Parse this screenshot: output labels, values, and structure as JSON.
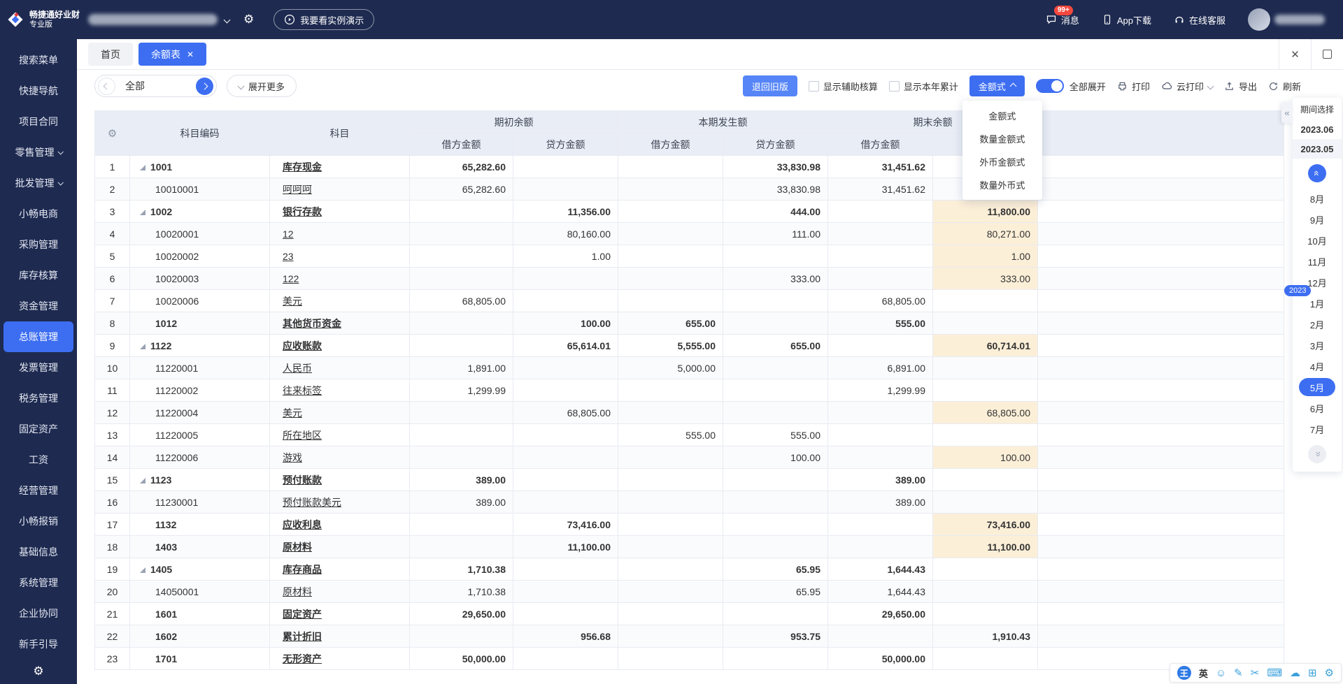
{
  "brand": {
    "name": "畅捷通好业财",
    "edition": "专业版"
  },
  "topbar": {
    "demo_link": "我要看实例演示",
    "messages": "消息",
    "messages_badge": "99+",
    "app_download": "App下载",
    "online_service": "在线客服"
  },
  "tabs": {
    "home": "首页",
    "active": "余额表"
  },
  "toolbar": {
    "filter_value": "全部",
    "expand_more": "展开更多",
    "back_old": "退回旧版",
    "show_aux": "显示辅助核算",
    "show_ytd": "显示本年累计",
    "format_btn": "金额式",
    "expand_all": "全部展开",
    "print": "打印",
    "cloud_print": "云打印",
    "export": "导出",
    "refresh": "刷新"
  },
  "format_menu": [
    "金额式",
    "数量金额式",
    "外币金额式",
    "数量外币式"
  ],
  "sidebar": {
    "items": [
      {
        "key": "search-menu",
        "label": "搜索菜单"
      },
      {
        "key": "quick-nav",
        "label": "快捷导航"
      },
      {
        "key": "project-contract",
        "label": "项目合同"
      },
      {
        "key": "retail-mgmt",
        "label": "零售管理",
        "arrow": true
      },
      {
        "key": "wholesale-mgmt",
        "label": "批发管理",
        "arrow": true
      },
      {
        "key": "xiaochang-ecom",
        "label": "小畅电商"
      },
      {
        "key": "purchase-mgmt",
        "label": "采购管理"
      },
      {
        "key": "inventory-accounting",
        "label": "库存核算"
      },
      {
        "key": "funds-mgmt",
        "label": "资金管理"
      },
      {
        "key": "general-ledger",
        "label": "总账管理",
        "active": true
      },
      {
        "key": "invoice-mgmt",
        "label": "发票管理"
      },
      {
        "key": "tax-mgmt",
        "label": "税务管理"
      },
      {
        "key": "fixed-assets",
        "label": "固定资产"
      },
      {
        "key": "payroll",
        "label": "工资"
      },
      {
        "key": "operations-mgmt",
        "label": "经营管理"
      },
      {
        "key": "xiaochang-expense",
        "label": "小畅报销"
      },
      {
        "key": "basic-info",
        "label": "基础信息"
      },
      {
        "key": "system-mgmt",
        "label": "系统管理"
      },
      {
        "key": "enterprise-collab",
        "label": "企业协同"
      },
      {
        "key": "beginner-guide",
        "label": "新手引导"
      }
    ]
  },
  "table": {
    "header": {
      "code": "科目编码",
      "subject": "科目",
      "groups": [
        "期初余额",
        "本期发生额",
        "期末余额"
      ],
      "debit": "借方金额",
      "credit": "贷方金额"
    },
    "rows": [
      {
        "seq": 1,
        "code": "1001",
        "name": "库存现金",
        "expand": true,
        "bold": true,
        "cells": [
          "65,282.60",
          "",
          "",
          "33,830.98",
          "31,451.62",
          ""
        ],
        "hl": []
      },
      {
        "seq": 2,
        "code": "10010001",
        "name": "呵呵呵",
        "expand": false,
        "bold": false,
        "cells": [
          "65,282.60",
          "",
          "",
          "33,830.98",
          "31,451.62",
          ""
        ],
        "hl": []
      },
      {
        "seq": 3,
        "code": "1002",
        "name": "银行存款",
        "expand": true,
        "bold": true,
        "cells": [
          "",
          "11,356.00",
          "",
          "444.00",
          "",
          "11,800.00"
        ],
        "hl": [
          5
        ]
      },
      {
        "seq": 4,
        "code": "10020001",
        "name": "12",
        "expand": false,
        "bold": false,
        "cells": [
          "",
          "80,160.00",
          "",
          "111.00",
          "",
          "80,271.00"
        ],
        "hl": [
          5
        ]
      },
      {
        "seq": 5,
        "code": "10020002",
        "name": "23",
        "expand": false,
        "bold": false,
        "cells": [
          "",
          "1.00",
          "",
          "",
          "",
          "1.00"
        ],
        "hl": [
          5
        ]
      },
      {
        "seq": 6,
        "code": "10020003",
        "name": "122",
        "expand": false,
        "bold": false,
        "cells": [
          "",
          "",
          "",
          "333.00",
          "",
          "333.00"
        ],
        "hl": [
          5
        ]
      },
      {
        "seq": 7,
        "code": "10020006",
        "name": "美元",
        "expand": false,
        "bold": false,
        "cells": [
          "68,805.00",
          "",
          "",
          "",
          "68,805.00",
          ""
        ],
        "hl": []
      },
      {
        "seq": 8,
        "code": "1012",
        "name": "其他货币资金",
        "expand": false,
        "bold": true,
        "cells": [
          "",
          "100.00",
          "655.00",
          "",
          "555.00",
          ""
        ],
        "hl": []
      },
      {
        "seq": 9,
        "code": "1122",
        "name": "应收账款",
        "expand": true,
        "bold": true,
        "cells": [
          "",
          "65,614.01",
          "5,555.00",
          "655.00",
          "",
          "60,714.01"
        ],
        "hl": [
          5
        ]
      },
      {
        "seq": 10,
        "code": "11220001",
        "name": "人民币",
        "expand": false,
        "bold": false,
        "cells": [
          "1,891.00",
          "",
          "5,000.00",
          "",
          "6,891.00",
          ""
        ],
        "hl": []
      },
      {
        "seq": 11,
        "code": "11220002",
        "name": "往来标签",
        "expand": false,
        "bold": false,
        "cells": [
          "1,299.99",
          "",
          "",
          "",
          "1,299.99",
          ""
        ],
        "hl": []
      },
      {
        "seq": 12,
        "code": "11220004",
        "name": "美元",
        "expand": false,
        "bold": false,
        "cells": [
          "",
          "68,805.00",
          "",
          "",
          "",
          "68,805.00"
        ],
        "hl": [
          5
        ]
      },
      {
        "seq": 13,
        "code": "11220005",
        "name": "所在地区",
        "expand": false,
        "bold": false,
        "cells": [
          "",
          "",
          "555.00",
          "555.00",
          "",
          ""
        ],
        "hl": []
      },
      {
        "seq": 14,
        "code": "11220006",
        "name": "游戏",
        "expand": false,
        "bold": false,
        "cells": [
          "",
          "",
          "",
          "100.00",
          "",
          "100.00"
        ],
        "hl": [
          5
        ]
      },
      {
        "seq": 15,
        "code": "1123",
        "name": "预付账款",
        "expand": true,
        "bold": true,
        "cells": [
          "389.00",
          "",
          "",
          "",
          "389.00",
          ""
        ],
        "hl": []
      },
      {
        "seq": 16,
        "code": "11230001",
        "name": "预付账款美元",
        "expand": false,
        "bold": false,
        "cells": [
          "389.00",
          "",
          "",
          "",
          "389.00",
          ""
        ],
        "hl": []
      },
      {
        "seq": 17,
        "code": "1132",
        "name": "应收利息",
        "expand": false,
        "bold": true,
        "cells": [
          "",
          "73,416.00",
          "",
          "",
          "",
          "73,416.00"
        ],
        "hl": [
          5
        ]
      },
      {
        "seq": 18,
        "code": "1403",
        "name": "原材料",
        "expand": false,
        "bold": true,
        "cells": [
          "",
          "11,100.00",
          "",
          "",
          "",
          "11,100.00"
        ],
        "hl": [
          5
        ]
      },
      {
        "seq": 19,
        "code": "1405",
        "name": "库存商品",
        "expand": true,
        "bold": true,
        "cells": [
          "1,710.38",
          "",
          "",
          "65.95",
          "1,644.43",
          ""
        ],
        "hl": []
      },
      {
        "seq": 20,
        "code": "14050001",
        "name": "原材料",
        "expand": false,
        "bold": false,
        "cells": [
          "1,710.38",
          "",
          "",
          "65.95",
          "1,644.43",
          ""
        ],
        "hl": []
      },
      {
        "seq": 21,
        "code": "1601",
        "name": "固定资产",
        "expand": false,
        "bold": true,
        "cells": [
          "29,650.00",
          "",
          "",
          "",
          "29,650.00",
          ""
        ],
        "hl": []
      },
      {
        "seq": 22,
        "code": "1602",
        "name": "累计折旧",
        "expand": false,
        "bold": true,
        "cells": [
          "",
          "956.68",
          "",
          "953.75",
          "",
          "1,910.43"
        ],
        "hl": []
      },
      {
        "seq": 23,
        "code": "1701",
        "name": "无形资产",
        "expand": false,
        "bold": true,
        "cells": [
          "50,000.00",
          "",
          "",
          "",
          "50,000.00",
          ""
        ],
        "hl": []
      }
    ]
  },
  "period": {
    "title": "期间选择",
    "dates": [
      "2023.06",
      "2023.05"
    ],
    "selected_date": "2023.05",
    "year_badge": "2023",
    "months": [
      "8月",
      "9月",
      "10月",
      "11月",
      "12月",
      "1月",
      "2月",
      "3月",
      "4月",
      "5月",
      "6月",
      "7月"
    ],
    "selected_month": "5月"
  },
  "ime": {
    "logo": "王",
    "lang": "英",
    "icons": [
      {
        "name": "smiley-icon",
        "glyph": "☺"
      },
      {
        "name": "pen-icon",
        "glyph": "✎"
      },
      {
        "name": "scissors-icon",
        "glyph": "✂"
      },
      {
        "name": "keyboard-icon",
        "glyph": "⌨"
      },
      {
        "name": "cloud-icon",
        "glyph": "☁"
      },
      {
        "name": "grid-icon",
        "glyph": "⊞"
      },
      {
        "name": "gear-icon",
        "glyph": "⚙"
      }
    ]
  }
}
